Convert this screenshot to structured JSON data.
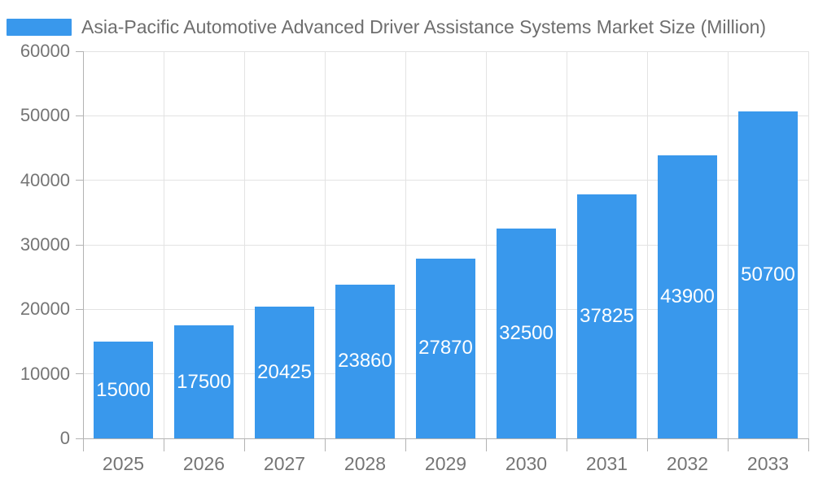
{
  "legend": {
    "swatch_icon": "series-color-swatch",
    "label": "Asia-Pacific Automotive Advanced Driver Assistance Systems Market Size (Million)"
  },
  "colors": {
    "bar": "#3998ec",
    "grid_line": "#e3e3e3",
    "axis_line": "#b3b3b3",
    "tick_text": "#757575",
    "title_text": "#6e6e6e",
    "bar_label_text": "#ffffff",
    "background": "#ffffff"
  },
  "chart_data": {
    "type": "bar",
    "title": "Asia-Pacific Automotive Advanced Driver Assistance Systems Market Size (Million)",
    "categories": [
      "2025",
      "2026",
      "2027",
      "2028",
      "2029",
      "2030",
      "2031",
      "2032",
      "2033"
    ],
    "values": [
      15000,
      17500,
      20425,
      23860,
      27870,
      32500,
      37825,
      43900,
      50700
    ],
    "xlabel": "",
    "ylabel": "",
    "ylim": [
      0,
      60000
    ],
    "ytick_step": 10000,
    "ytick_labels": [
      "0",
      "10000",
      "20000",
      "30000",
      "40000",
      "50000",
      "60000"
    ],
    "grid": true,
    "grid_horizontal": true,
    "grid_vertical": true,
    "legend_position": "top-left",
    "bar_label_position": "inside-middle"
  }
}
